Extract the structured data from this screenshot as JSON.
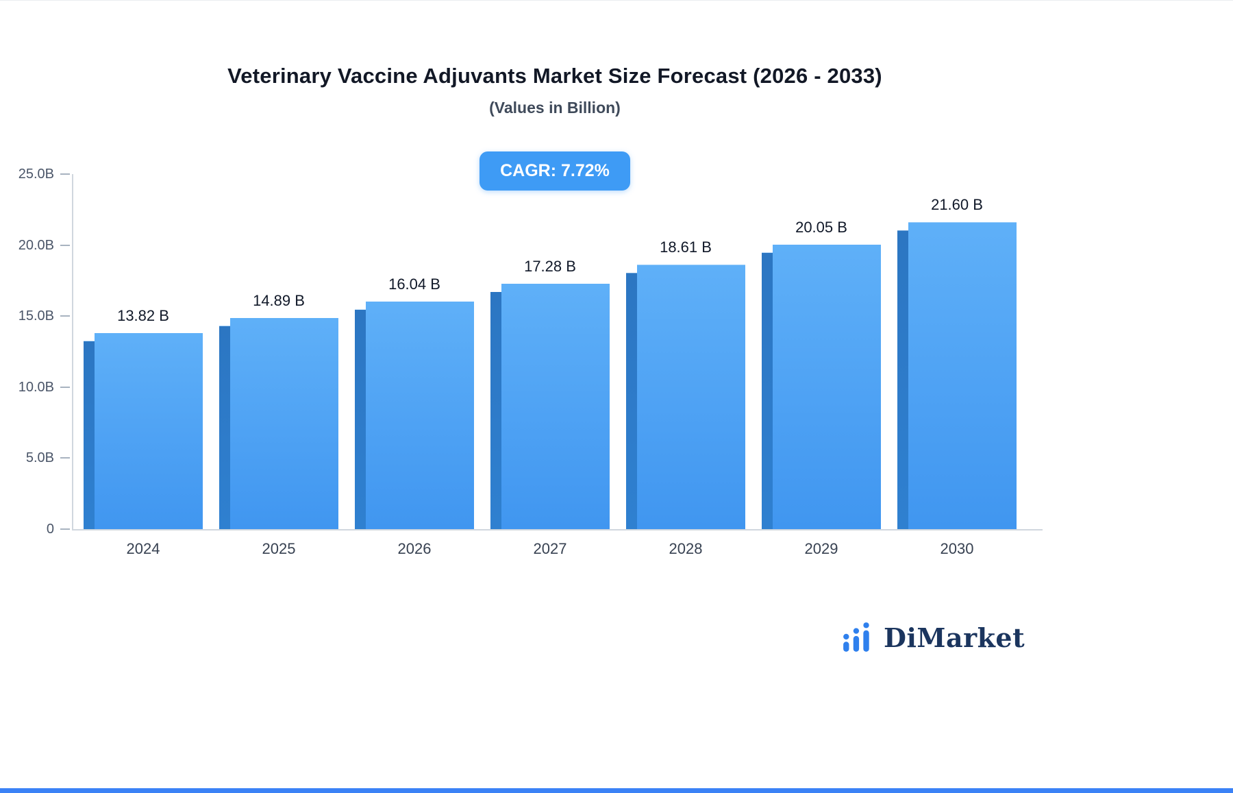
{
  "header": {
    "title": "Veterinary Vaccine Adjuvants Market Size Forecast (2026 - 2033)",
    "subtitle": "(Values in Billion)",
    "cagr_badge": "CAGR: 7.72%"
  },
  "chart_data": {
    "type": "bar",
    "title": "Veterinary Vaccine Adjuvants Market Size Forecast (2026 - 2033)",
    "subtitle": "(Values in Billion)",
    "annotation": "CAGR: 7.72%",
    "categories": [
      "2024",
      "2025",
      "2026",
      "2027",
      "2028",
      "2029",
      "2030"
    ],
    "values": [
      13.82,
      14.89,
      16.04,
      17.28,
      18.61,
      20.05,
      21.6
    ],
    "value_labels": [
      "13.82 B",
      "14.89 B",
      "16.04 B",
      "17.28 B",
      "18.61 B",
      "20.05 B",
      "21.60 B"
    ],
    "xlabel": "",
    "ylabel": "",
    "ylim": [
      0,
      25
    ],
    "y_ticks": [
      0,
      5,
      10,
      15,
      20,
      25
    ],
    "y_tick_labels": [
      "0",
      "5.0B",
      "10.0B",
      "15.0B",
      "20.0B",
      "25.0B"
    ],
    "grid": false,
    "legend": false,
    "bar_color": "#4ba1f1",
    "bar_side_color": "#2e7bc6"
  },
  "branding": {
    "logo_text": "DiMarket",
    "logo_icon": "bar-chart-icon",
    "logo_icon_color": "#2f80ed",
    "accent_color": "#3b82f6"
  }
}
